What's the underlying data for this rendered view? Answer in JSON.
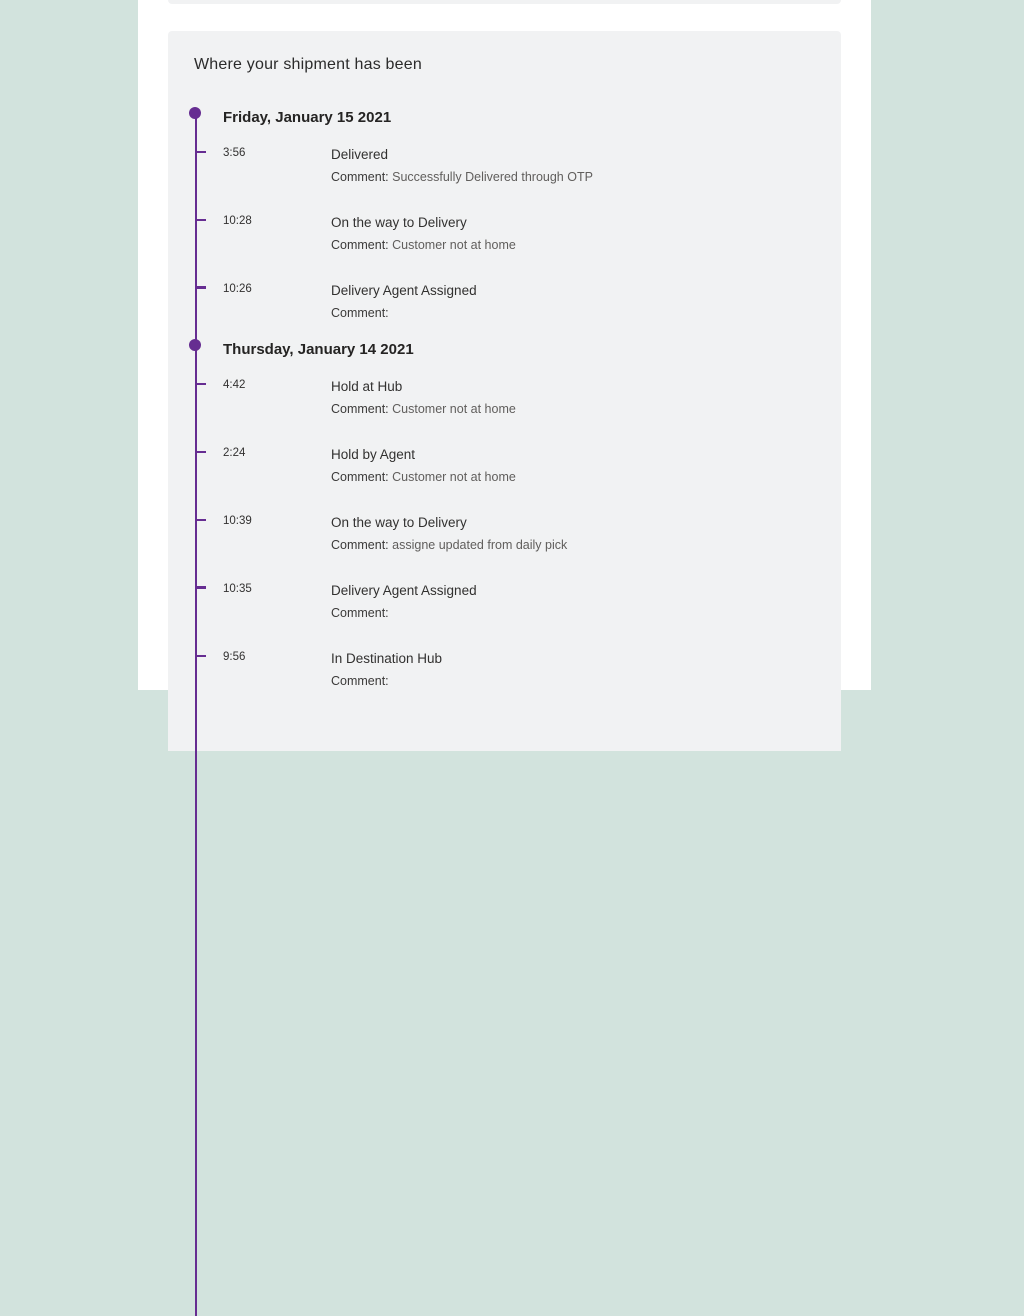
{
  "page": {
    "background_color": "#d2e3dd",
    "content_column_color": "#ffffff",
    "card_color": "#f1f2f3",
    "accent_purple": "#662d91"
  },
  "shipment_history": {
    "title": "Where your shipment has been",
    "groups": [
      {
        "date": "Friday, January 15 2021",
        "entries": [
          {
            "time": "3:56",
            "status": "Delivered",
            "comment_label": "Comment:",
            "comment": "Successfully Delivered through OTP",
            "tick_bold": false
          },
          {
            "time": "10:28",
            "status": "On the way to Delivery",
            "comment_label": "Comment:",
            "comment": "Customer not at home",
            "tick_bold": false
          },
          {
            "time": "10:26",
            "status": "Delivery Agent Assigned",
            "comment_label": "Comment:",
            "comment": "",
            "tick_bold": true
          }
        ]
      },
      {
        "date": "Thursday, January 14 2021",
        "entries": [
          {
            "time": "4:42",
            "status": "Hold at Hub",
            "comment_label": "Comment:",
            "comment": "Customer not at home",
            "tick_bold": false
          },
          {
            "time": "2:24",
            "status": "Hold by Agent",
            "comment_label": "Comment:",
            "comment": "Customer not at home",
            "tick_bold": false
          },
          {
            "time": "10:39",
            "status": "On the way to Delivery",
            "comment_label": "Comment:",
            "comment": "assigne updated from daily pick",
            "tick_bold": false
          },
          {
            "time": "10:35",
            "status": "Delivery Agent Assigned",
            "comment_label": "Comment:",
            "comment": "",
            "tick_bold": true
          },
          {
            "time": "9:56",
            "status": "In Destination Hub",
            "comment_label": "Comment:",
            "comment": "",
            "tick_bold": false
          }
        ]
      }
    ]
  }
}
